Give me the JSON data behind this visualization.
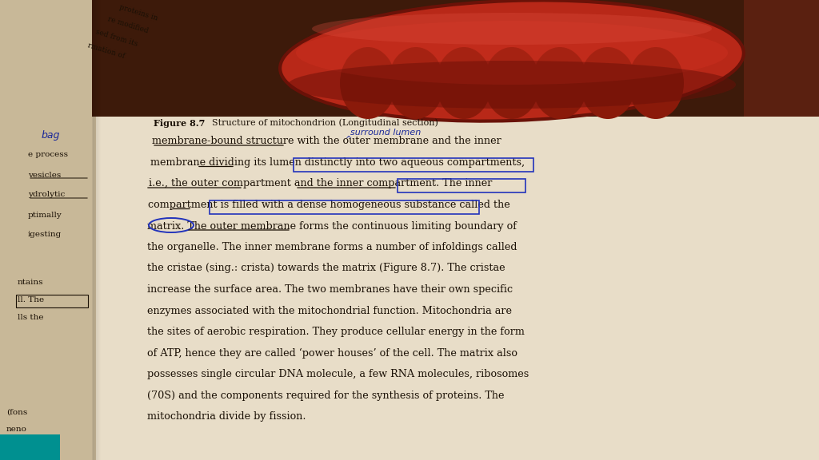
{
  "bg_outer": "#8a7060",
  "bg_page_main": "#e8ddc8",
  "bg_left_strip": "#c8b898",
  "bg_top_area": "#5a3020",
  "bg_top_image": "#8b2010",
  "teal_color": "#009090",
  "text_color": "#1a1005",
  "handwritten_color": "#1a2899",
  "underline_color": "#1a1005",
  "box_color": "#2233bb",
  "figure_caption_bold": "Figure 8.7",
  "figure_caption_rest": "  Structure of mitochondrion (Longitudinal section)",
  "handwritten_above": "surround lumen",
  "body_lines": [
    "membrane-bound structure with the outer membrane and the inner",
    "membrane dividing its lumen distinctly into two aqueous compartments,",
    "i.e., the outer compartment and the inner compartment. The inner",
    "compartment is filled with a dense homogeneous substance called the",
    "matrix. The outer membrane forms the continuous limiting boundary of",
    "the organelle. The inner membrane forms a number of infoldings called",
    "the cristae (sing.: crista) towards the matrix (Figure 8.7). The cristae",
    "increase the surface area. The two membranes have their own specific",
    "enzymes associated with the mitochondrial function. Mitochondria are",
    "the sites of aerobic respiration. They produce cellular energy in the form",
    "of ATP, hence they are called ‘power houses’ of the cell. The matrix also",
    "possesses single circular DNA molecule, a few RNA molecules, ribosomes",
    "(70S) and the components required for the synthesis of proteins. The",
    "mitochondria divide by fission."
  ],
  "top_left_diagonal": [
    "proteins in",
    "re modified",
    "sed from its",
    "rmation of"
  ],
  "left_words_upper": [
    "bag",
    "e process",
    "vesicles",
    "ydrolytic",
    "ptimally",
    "igesting"
  ],
  "left_words_lower": [
    "ntains",
    "ll. The",
    "lls the"
  ],
  "left_bottom": [
    "(fons",
    "neno"
  ]
}
